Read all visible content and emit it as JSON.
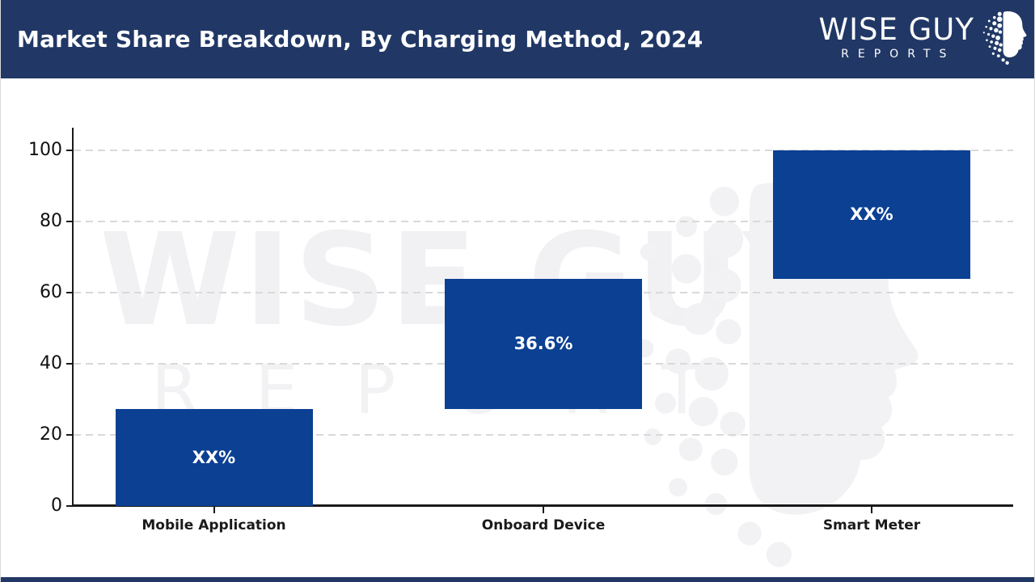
{
  "page": {
    "accent_navy": "#213866",
    "bar_blue": "#0b4093",
    "grid_color": "#d9d9d9",
    "watermark_color": "#f2f2f4"
  },
  "header": {
    "title": "Market Share Breakdown, By Charging Method, 2024",
    "logo_line1": "WISE GUY",
    "logo_line2": "REPORTS"
  },
  "watermark": {
    "line1": "WISE GUY",
    "line2": "REPORTS"
  },
  "chart_data": {
    "type": "bar",
    "variant": "floating-waterfall",
    "title": "Market Share Breakdown, By Charging Method, 2024",
    "categories": [
      "Mobile Application",
      "Onboard Device",
      "Smart Meter"
    ],
    "series": [
      {
        "name": "Market share (%)",
        "segments": [
          {
            "from": 0,
            "to": 27.3,
            "label": "XX%"
          },
          {
            "from": 27.3,
            "to": 63.9,
            "label": "36.6%"
          },
          {
            "from": 63.9,
            "to": 100,
            "label": "XX%"
          }
        ]
      }
    ],
    "values_displayed": [
      "XX%",
      "36.6%",
      "XX%"
    ],
    "ylim": [
      0,
      100
    ],
    "yticks": [
      0,
      20,
      40,
      60,
      80,
      100
    ],
    "xlabel": "",
    "ylabel": "",
    "grid": {
      "horizontal": true,
      "style": "dashed",
      "color": "#d9d9d9"
    },
    "legend": "none",
    "bar_color": "#0b4093",
    "bar_label_color": "#ffffff"
  }
}
